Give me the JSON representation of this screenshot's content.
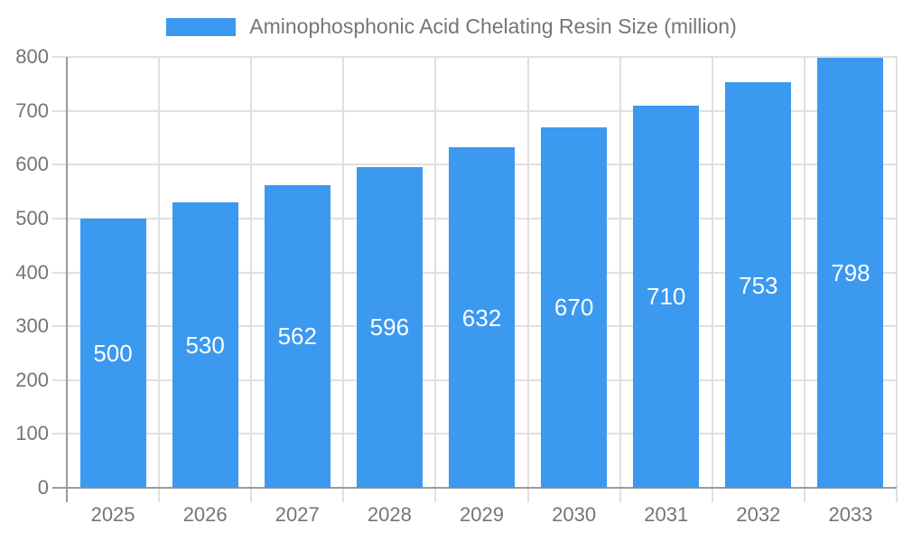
{
  "chart_data": {
    "type": "bar",
    "title": "Aminophosphonic Acid Chelating Resin Size (million)",
    "categories": [
      "2025",
      "2026",
      "2027",
      "2028",
      "2029",
      "2030",
      "2031",
      "2032",
      "2033"
    ],
    "values": [
      500,
      530,
      562,
      596,
      632,
      670,
      710,
      753,
      798
    ],
    "xlabel": "",
    "ylabel": "",
    "ylim": [
      0,
      800
    ],
    "yticks": [
      0,
      100,
      200,
      300,
      400,
      500,
      600,
      700,
      800
    ],
    "grid": true,
    "legend_position": "top",
    "colors": {
      "bar": "#3B99F0",
      "bar_value_text": "#ffffff",
      "axis_text": "#757575",
      "title_text": "#757575",
      "gridline": "#e0e0e0",
      "axis_line": "#9b9b9b",
      "background": "#ffffff"
    }
  }
}
